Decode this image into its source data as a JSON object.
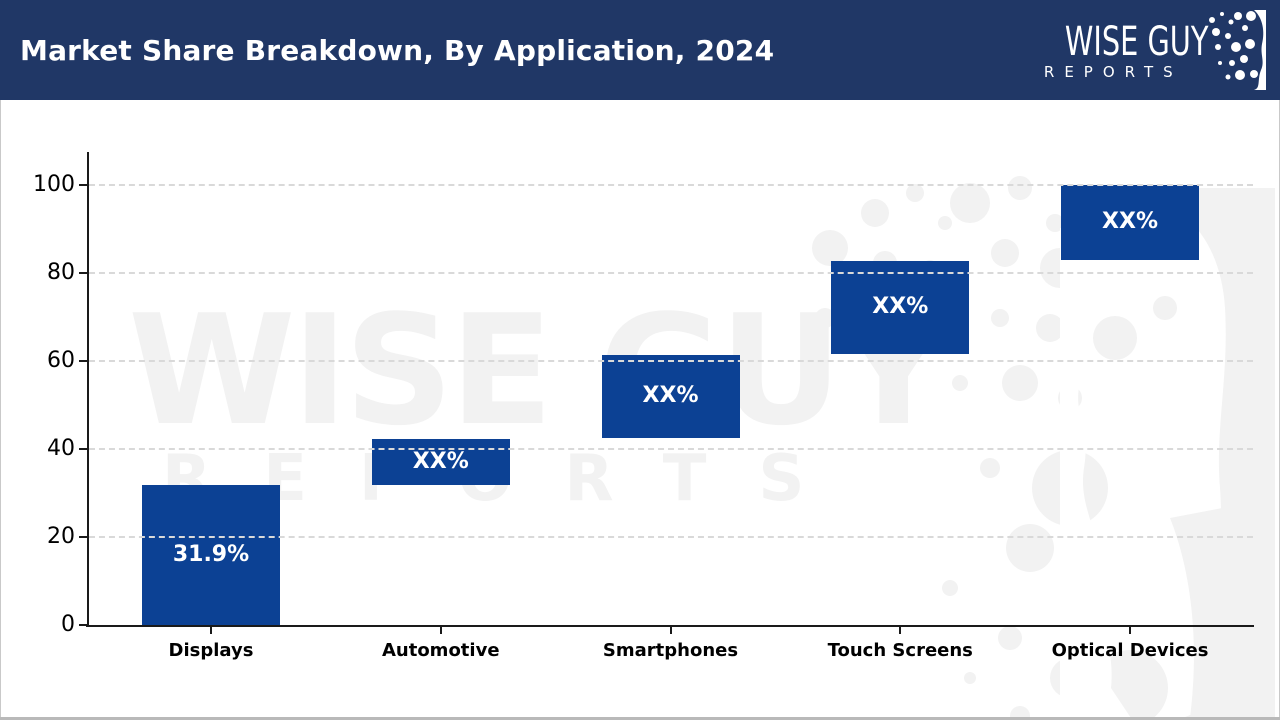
{
  "header": {
    "title": "Market Share Breakdown, By Application, 2024",
    "bg_color": "#203766"
  },
  "logo": {
    "name_line": "WISE GUY",
    "sub_line": "REPORTS",
    "face_icon": "dotted-face-profile"
  },
  "watermark": {
    "name_line": "WISE GUY",
    "sub_line": "REPORTS",
    "face_icon": "dotted-face-profile",
    "color": "#f2f2f2"
  },
  "chart_data": {
    "type": "bar",
    "subtype": "waterfall",
    "title": "Market Share Breakdown, By Application, 2024",
    "xlabel": "",
    "ylabel": "",
    "categories": [
      "Displays",
      "Automotive",
      "Smartphones",
      "Touch Screens",
      "Optical Devices"
    ],
    "segments": [
      {
        "category": "Displays",
        "start": 0.0,
        "end": 31.9,
        "label": "31.9%"
      },
      {
        "category": "Automotive",
        "start": 31.9,
        "end": 42.3,
        "label": "XX%"
      },
      {
        "category": "Smartphones",
        "start": 42.5,
        "end": 61.4,
        "label": "XX%"
      },
      {
        "category": "Touch Screens",
        "start": 61.6,
        "end": 82.8,
        "label": "XX%"
      },
      {
        "category": "Optical Devices",
        "start": 83.0,
        "end": 100.0,
        "label": "XX%"
      }
    ],
    "yticks": [
      0,
      20,
      40,
      60,
      80,
      100
    ],
    "ylim": [
      0,
      105
    ],
    "bar_color": "#0c4194",
    "grid": "horizontal-dashed",
    "gridline_color": "#d9d9d9",
    "legend": "none"
  }
}
